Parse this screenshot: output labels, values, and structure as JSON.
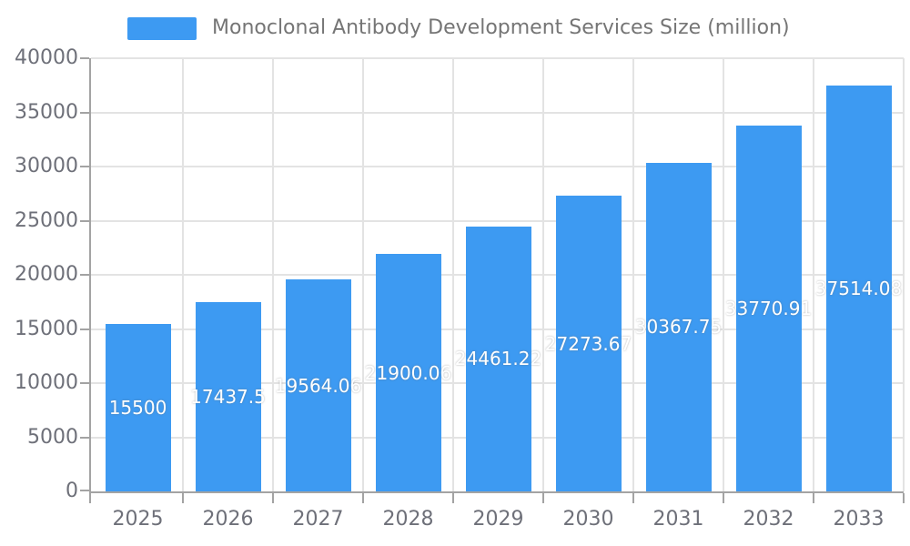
{
  "legend": {
    "label": "Monoclonal Antibody Development Services Size (million)"
  },
  "chart_data": {
    "type": "bar",
    "title": "Monoclonal Antibody Development Services Size (million)",
    "categories": [
      "2025",
      "2026",
      "2027",
      "2028",
      "2029",
      "2030",
      "2031",
      "2032",
      "2033"
    ],
    "values": [
      15500,
      17437.5,
      19564.06,
      21900.06,
      24461.22,
      27273.67,
      30367.75,
      33770.91,
      37514.08
    ],
    "value_labels": [
      "15500",
      "17437.5",
      "19564.06",
      "21900.06",
      "24461.22",
      "27273.67",
      "30367.75",
      "33770.91",
      "37514.08"
    ],
    "series": [
      {
        "name": "Monoclonal Antibody Development Services Size (million)",
        "values": [
          15500,
          17437.5,
          19564.06,
          21900.06,
          24461.22,
          27273.67,
          30367.75,
          33770.91,
          37514.08
        ]
      }
    ],
    "xlabel": "",
    "ylabel": "",
    "ylim": [
      0,
      40000
    ],
    "yticks": [
      0,
      5000,
      10000,
      15000,
      20000,
      25000,
      30000,
      35000,
      40000
    ],
    "grid": true,
    "legend_position": "top",
    "bar_label_position": "inside-middle",
    "colors": {
      "bar": "#3D9AF2",
      "bar_label": "#FFFFFF",
      "grid_line": "#E3E3E3",
      "axis_line": "#A3A3A3",
      "axis_label": "#6E7079",
      "legend_text": "#757575",
      "background": "#FFFFFF"
    }
  }
}
